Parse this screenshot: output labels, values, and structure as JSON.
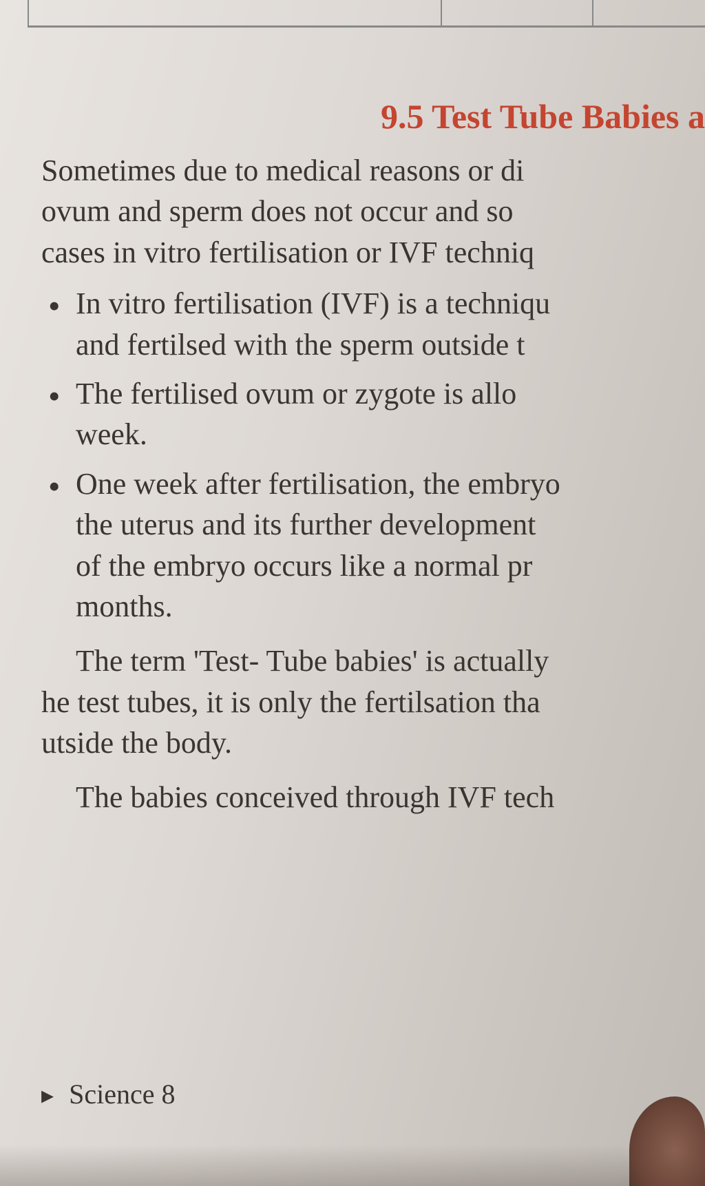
{
  "colors": {
    "title_color": "#c44530",
    "text_color": "#3a3530",
    "background_start": "#e8e4e0",
    "background_end": "#c0bab5",
    "border_color": "#888888"
  },
  "typography": {
    "title_fontsize": 50,
    "body_fontsize": 44,
    "footer_fontsize": 40,
    "font_family": "Georgia, serif",
    "line_height": 1.35
  },
  "section": {
    "number": "9.5",
    "title": "Test Tube Babies a"
  },
  "intro": {
    "line1": "Sometimes due to medical reasons or di",
    "line2": "ovum and sperm does not occur and so",
    "line3": "cases in vitro fertilisation or IVF techniq"
  },
  "bullets": [
    {
      "line1": "In vitro fertilisation (IVF) is a techniqu",
      "line2": "and fertilsed with the sperm outside t"
    },
    {
      "line1": "The fertilised ovum or zygote is allo",
      "line2": "week."
    },
    {
      "line1": "One week after fertilisation, the embryo",
      "line2": "the uterus and its further development",
      "line3": "of the embryo occurs like a normal pr",
      "line4": "months."
    }
  ],
  "paragraphs": [
    {
      "line1": "The term 'Test- Tube babies' is actually",
      "line2": "he test tubes, it is only the fertilsation tha",
      "line3": "utside the body."
    },
    {
      "line1": "The babies conceived through IVF tech"
    }
  ],
  "footer": {
    "arrow": "▸",
    "text": "Science 8"
  }
}
